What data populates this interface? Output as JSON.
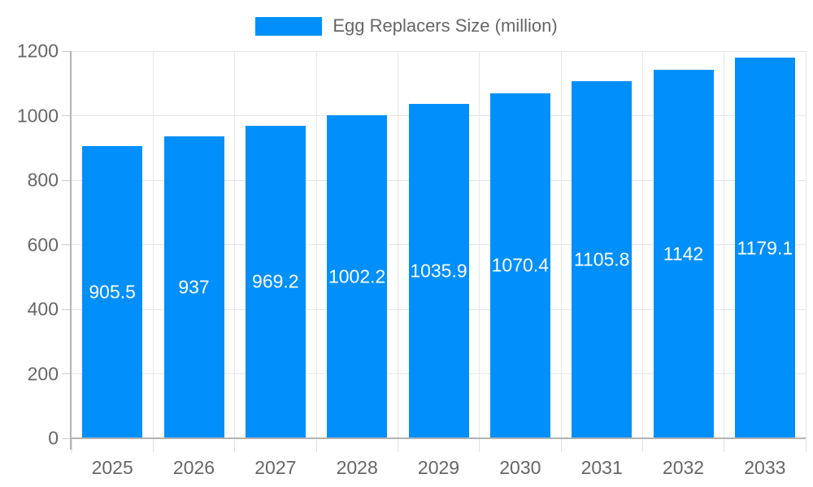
{
  "chart_data": {
    "type": "bar",
    "title": "",
    "legend_label": "Egg Replacers Size (million)",
    "legend_position": "top-center",
    "categories": [
      "2025",
      "2026",
      "2027",
      "2028",
      "2029",
      "2030",
      "2031",
      "2032",
      "2033"
    ],
    "series": [
      {
        "name": "Egg Replacers Size (million)",
        "values": [
          905.5,
          937,
          969.2,
          1002.2,
          1035.9,
          1070.4,
          1105.8,
          1142,
          1179.1
        ],
        "value_labels": [
          "905.5",
          "937",
          "969.2",
          "1002.2",
          "1035.9",
          "1070.4",
          "1105.8",
          "1142",
          "1179.1"
        ]
      }
    ],
    "xlabel": "",
    "ylabel": "",
    "ylim": [
      0,
      1200
    ],
    "yticks": [
      0,
      200,
      400,
      600,
      800,
      1000,
      1200
    ],
    "grid": true,
    "value_labels_visible": true,
    "value_label_position": "center-of-bar",
    "colors": {
      "bar": "#008FFB",
      "grid": "#e6e6e6",
      "axis": "#b3b3b3",
      "y_tick": "#cccccc",
      "x_tick": "#e0e0e0",
      "label_text": "#666666",
      "value_text": "#ffffff",
      "background": "#ffffff"
    }
  }
}
